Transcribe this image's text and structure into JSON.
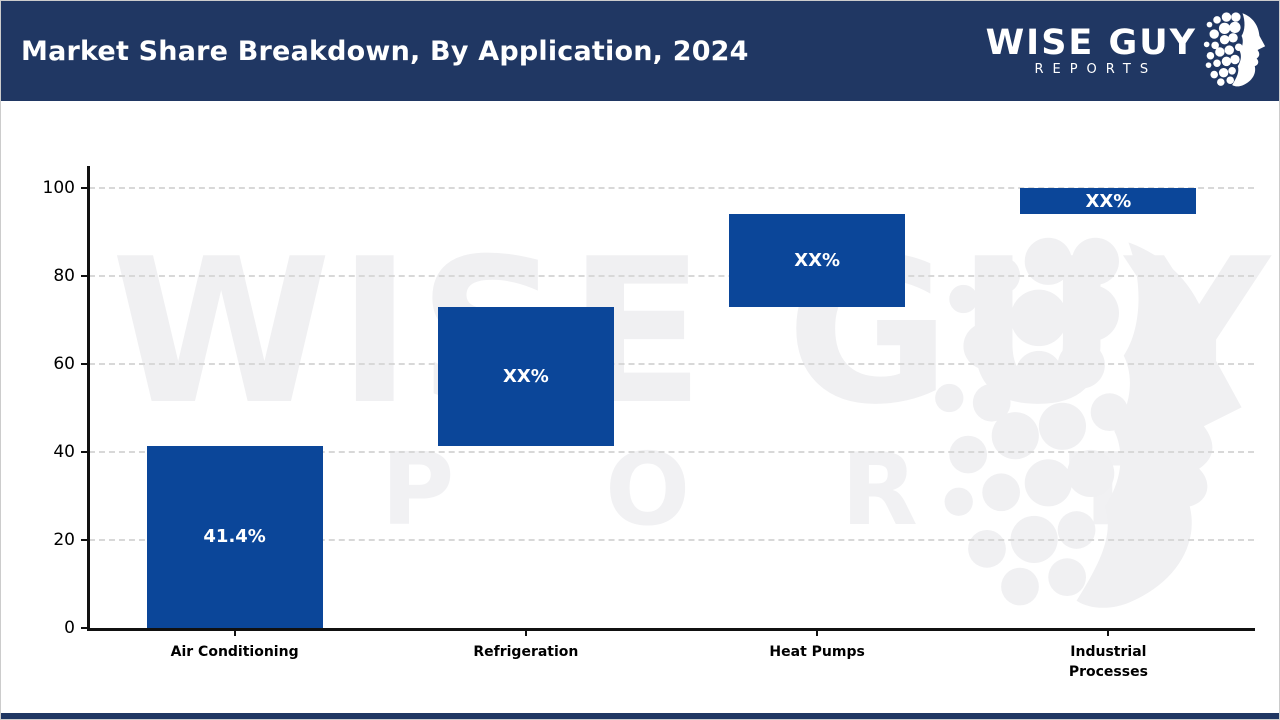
{
  "header": {
    "title": "Market Share Breakdown, By Application, 2024",
    "logo_line1": "WISE GUY",
    "logo_line2": "REPORTS"
  },
  "watermark": {
    "line1": "WISE GUY",
    "line2": "P O R T S"
  },
  "colors": {
    "header_bg": "#203763",
    "footer_bg": "#203763",
    "bar": "#0b4699",
    "bar_label": "#ffffff",
    "grid": "#d8d8d8",
    "axis": "#111111",
    "watermark": "#f0f0f2"
  },
  "chart_data": {
    "type": "bar",
    "subtype": "waterfall",
    "title": "Market Share Breakdown, By Application, 2024",
    "xlabel": "",
    "ylabel": "",
    "ylim": [
      0,
      100
    ],
    "yticks": [
      0,
      20,
      40,
      60,
      80,
      100
    ],
    "grid": "horizontal-dashed",
    "legend": "none",
    "categories": [
      "Air Conditioning",
      "Refrigeration",
      "Heat Pumps",
      "Industrial Processes"
    ],
    "segments": [
      {
        "category": "Air Conditioning",
        "start": 0,
        "end": 41.4,
        "label": "41.4%"
      },
      {
        "category": "Refrigeration",
        "start": 41.4,
        "end": 73,
        "label": "XX%"
      },
      {
        "category": "Heat Pumps",
        "start": 73,
        "end": 94,
        "label": "XX%"
      },
      {
        "category": "Industrial Processes",
        "start": 94,
        "end": 100,
        "label": "XX%"
      }
    ]
  }
}
